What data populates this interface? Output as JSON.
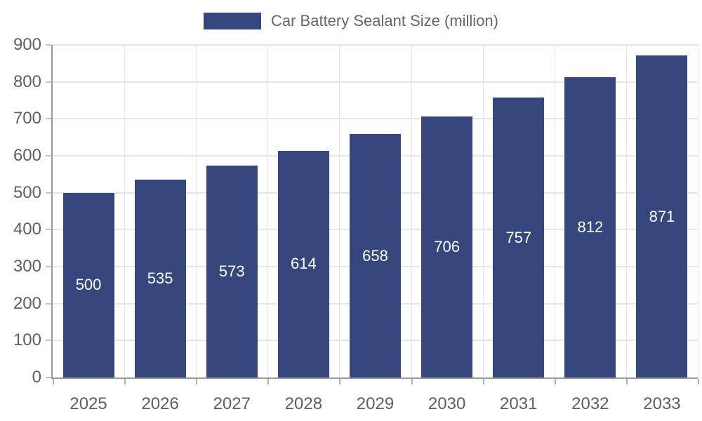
{
  "chart_data": {
    "type": "bar",
    "title": "Car Battery Sealant Size (million)",
    "legend": {
      "entries": [
        "Car Battery Sealant Size (million)"
      ],
      "position": "top-center"
    },
    "categories": [
      "2025",
      "2026",
      "2027",
      "2028",
      "2029",
      "2030",
      "2031",
      "2032",
      "2033"
    ],
    "series": [
      {
        "name": "Car Battery Sealant Size (million)",
        "values": [
          500,
          535,
          573,
          614,
          658,
          706,
          757,
          812,
          871
        ]
      }
    ],
    "value_labels_shown": true,
    "xlabel": "",
    "ylabel": "",
    "ylim": [
      0,
      900
    ],
    "yticks": [
      0,
      100,
      200,
      300,
      400,
      500,
      600,
      700,
      800,
      900
    ],
    "grid": true,
    "colors": {
      "bar": "#35477d",
      "value_label": "#ffffff",
      "axis_text": "#5f5f5f",
      "legend_text": "#666666",
      "gridline": "#e6e6e6",
      "axis_line": "#999999",
      "background": "#ffffff"
    }
  }
}
